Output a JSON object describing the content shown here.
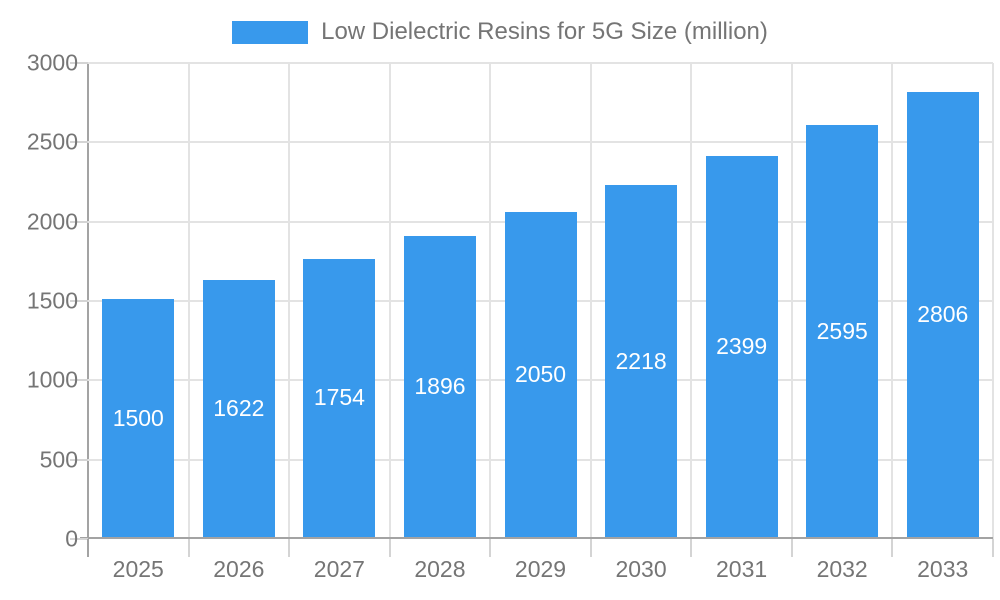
{
  "chart_data": {
    "type": "bar",
    "title": "Low Dielectric Resins for 5G Size (million)",
    "legend": [
      {
        "label": "Low Dielectric Resins for 5G Size (million)"
      }
    ],
    "legend_position": "top",
    "categories": [
      "2025",
      "2026",
      "2027",
      "2028",
      "2029",
      "2030",
      "2031",
      "2032",
      "2033"
    ],
    "values": [
      1500,
      1622,
      1754,
      1896,
      2050,
      2218,
      2399,
      2595,
      2806
    ],
    "bar_labels": [
      "1500",
      "1622",
      "1754",
      "1896",
      "2050",
      "2218",
      "2399",
      "2595",
      "2806"
    ],
    "xlabel": "",
    "ylabel": "",
    "ylim": [
      0,
      3000
    ],
    "yticks": [
      0,
      500,
      1000,
      1500,
      2000,
      2500,
      3000
    ],
    "grid": true,
    "colors": {
      "bar": "#3899ec",
      "grid": "#e3e3e3",
      "axis": "#a3a3a3",
      "tick": "#d4d4d4",
      "axis_text": "#757575",
      "bar_label_text": "#ffffff",
      "background": "#ffffff"
    }
  }
}
